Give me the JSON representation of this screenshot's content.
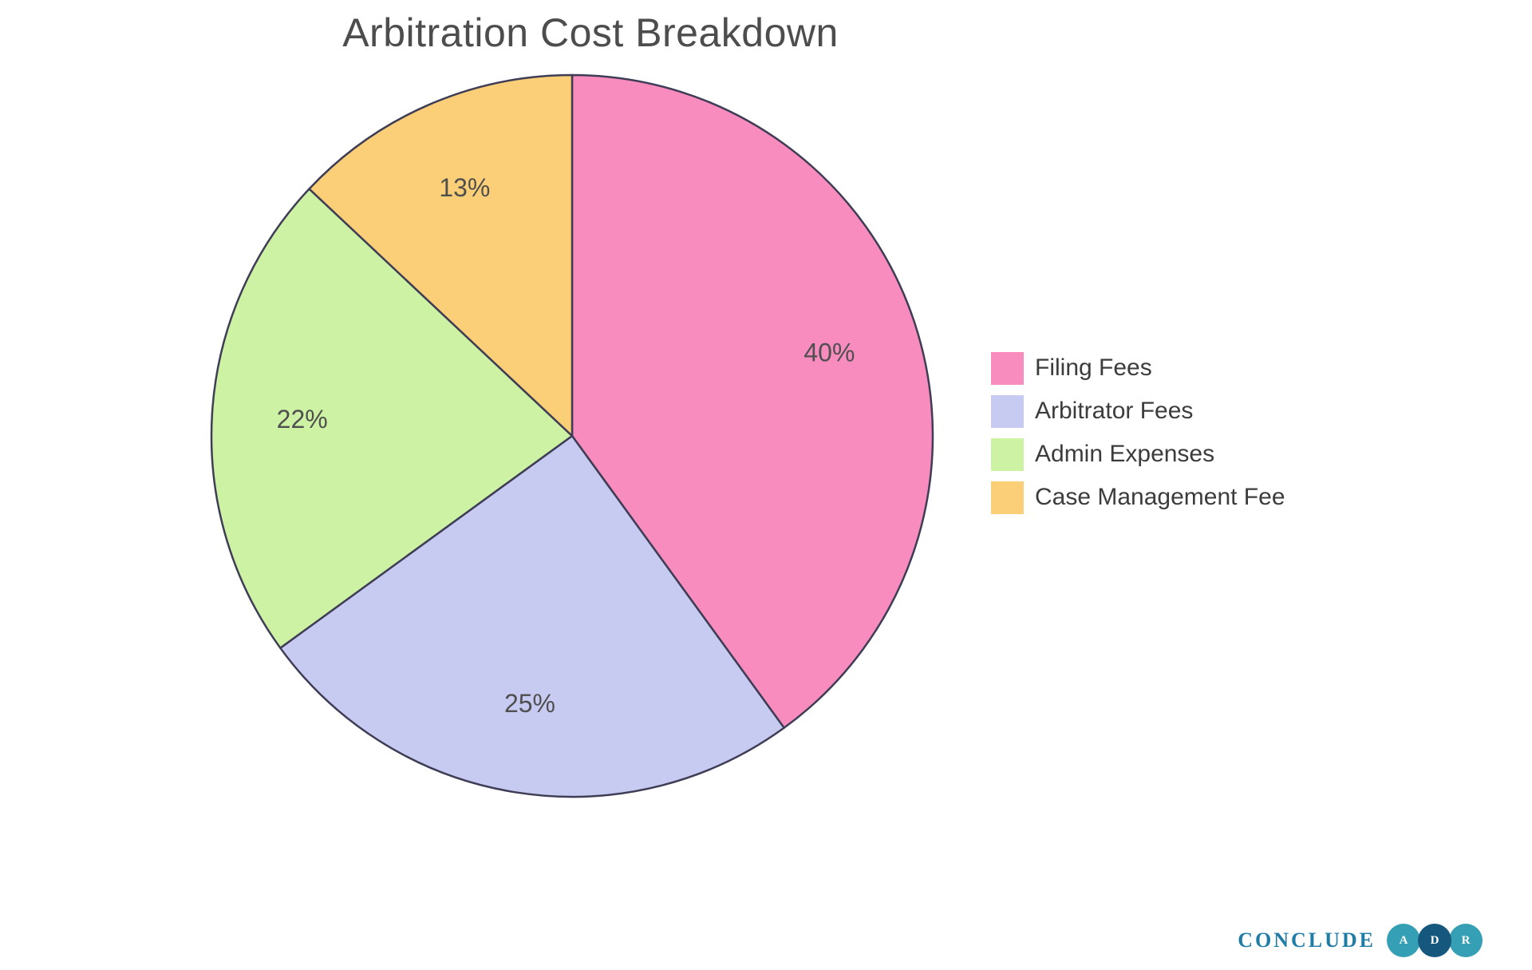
{
  "chart_data": {
    "type": "pie",
    "title": "Arbitration Cost Breakdown",
    "labels": [
      "Filing Fees",
      "Arbitrator Fees",
      "Admin Expenses",
      "Case Management Fee"
    ],
    "values": [
      40,
      25,
      22,
      13
    ],
    "value_labels": [
      "40%",
      "25%",
      "22%",
      "13%"
    ],
    "colors": [
      "#F98CBE",
      "#C7CBF1",
      "#CEF2A4",
      "#FACF77"
    ],
    "slice_outline_color": "#3F3D56",
    "start_angle_deg": 0,
    "direction": "clockwise",
    "legend_position": "right",
    "grid": false
  },
  "branding": {
    "wordmark": "CONCLUDE",
    "wordmark_color": "#1F7CA6",
    "badge_letters": [
      "A",
      "D",
      "R"
    ],
    "badge_colors": [
      "#35A0B5",
      "#16577E",
      "#35A0B5"
    ]
  }
}
